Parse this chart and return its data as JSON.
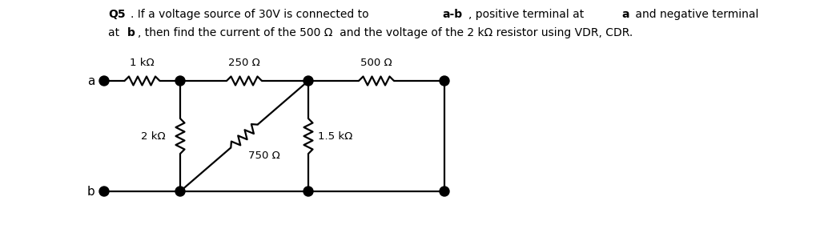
{
  "bg_color": "#ffffff",
  "text_color": "#000000",
  "circuit_color": "#000000",
  "node_color": "#000000",
  "title_bold_parts": [
    "Q5",
    "a-b",
    "a",
    "b"
  ],
  "figsize": [
    10.24,
    3.11
  ],
  "dpi": 100
}
